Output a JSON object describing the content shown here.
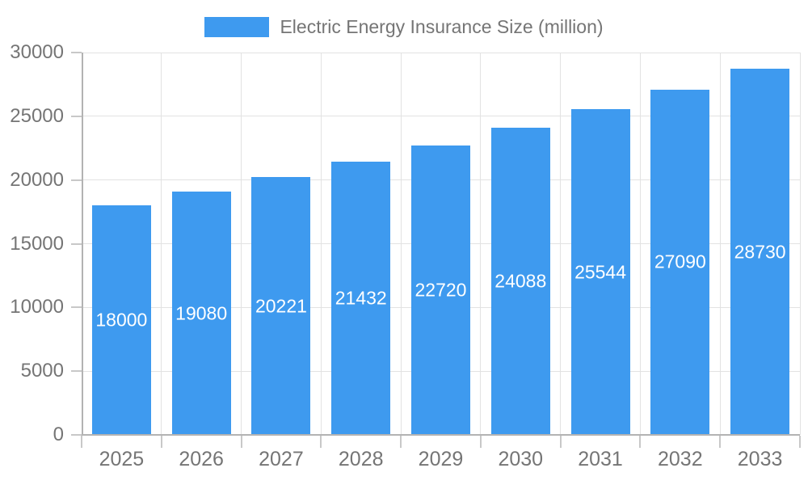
{
  "legend": {
    "label": "Electric Energy Insurance Size (million)"
  },
  "colors": {
    "bar": "#3E9AEF",
    "bar_label": "#ffffff",
    "axis_line": "#b3b3b3",
    "gridline": "#e2e2e2",
    "tick": "#c8c8c8",
    "text": "#757575",
    "background": "#ffffff"
  },
  "chart_data": {
    "type": "bar",
    "title": "Electric Energy Insurance Size (million)",
    "categories": [
      "2025",
      "2026",
      "2027",
      "2028",
      "2029",
      "2030",
      "2031",
      "2032",
      "2033"
    ],
    "values": [
      18000,
      19080,
      20221,
      21432,
      22720,
      24088,
      25544,
      27090,
      28730
    ],
    "xlabel": "",
    "ylabel": "",
    "ylim": [
      0,
      30000
    ],
    "yticks": [
      0,
      5000,
      10000,
      15000,
      20000,
      25000,
      30000
    ],
    "grid": true,
    "legend_position": "top",
    "bar_labels": "inside-center-white"
  }
}
